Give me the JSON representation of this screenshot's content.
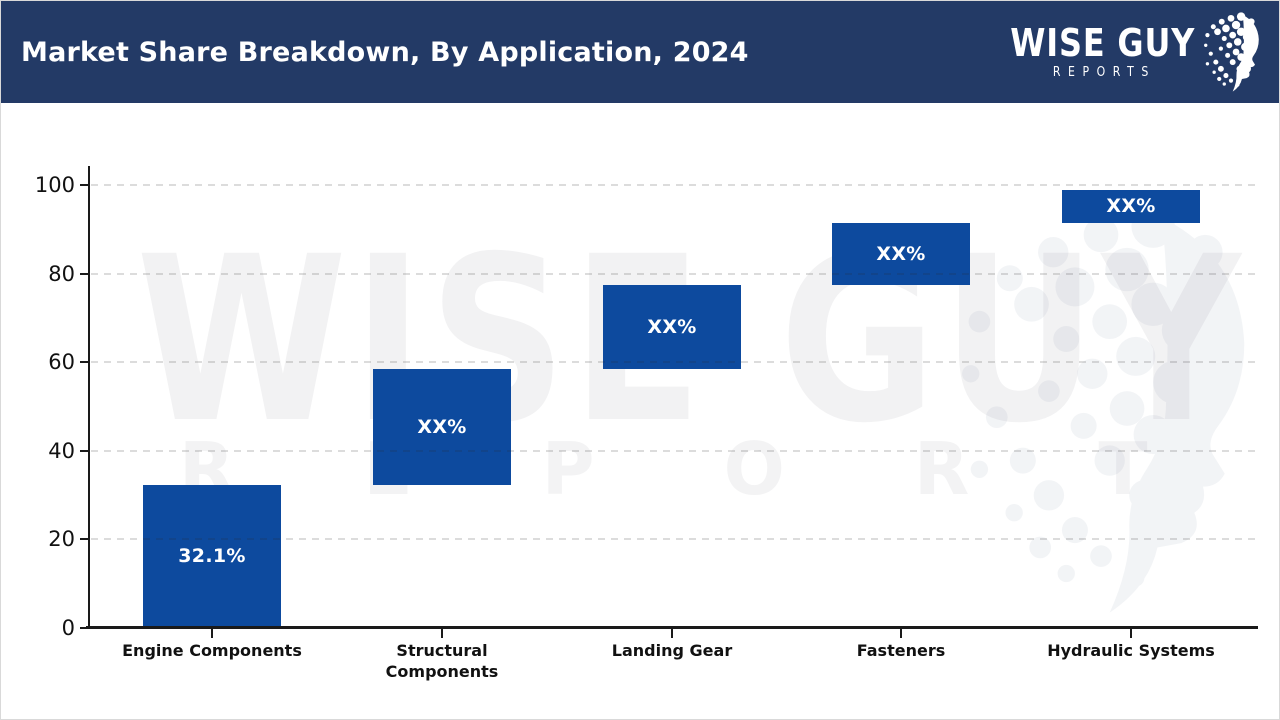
{
  "header": {
    "title": "Market Share Breakdown, By Application, 2024",
    "logo": {
      "line1": "WISE GUY",
      "line2": "REPORTS"
    }
  },
  "watermark": {
    "line1": "WISE GUY",
    "line2": "R E P O R T S"
  },
  "chart_data": {
    "type": "bar",
    "subtype": "floating-waterfall",
    "title": "Market Share Breakdown, By Application, 2024",
    "categories": [
      "Engine Components",
      "Structural Components",
      "Landing Gear",
      "Fasteners",
      "Hydraulic Systems"
    ],
    "bars": [
      {
        "start": 0,
        "end": 32.1,
        "label": "32.1%"
      },
      {
        "start": 32.1,
        "end": 58.5,
        "label": "XX%"
      },
      {
        "start": 58.5,
        "end": 77.4,
        "label": "XX%"
      },
      {
        "start": 77.4,
        "end": 91.5,
        "label": "XX%"
      },
      {
        "start": 91.5,
        "end": 98.8,
        "label": "XX%"
      }
    ],
    "yticks": [
      0,
      20,
      40,
      60,
      80,
      100
    ],
    "ylim": [
      0,
      104
    ],
    "xlabel": "",
    "ylabel": "",
    "grid": "horizontal-dashed",
    "legend": "none",
    "bar_color": "#0d4a9e",
    "bar_label_color": "#ffffff",
    "axis_color": "#1a1a1a",
    "header_color": "#233a66"
  }
}
